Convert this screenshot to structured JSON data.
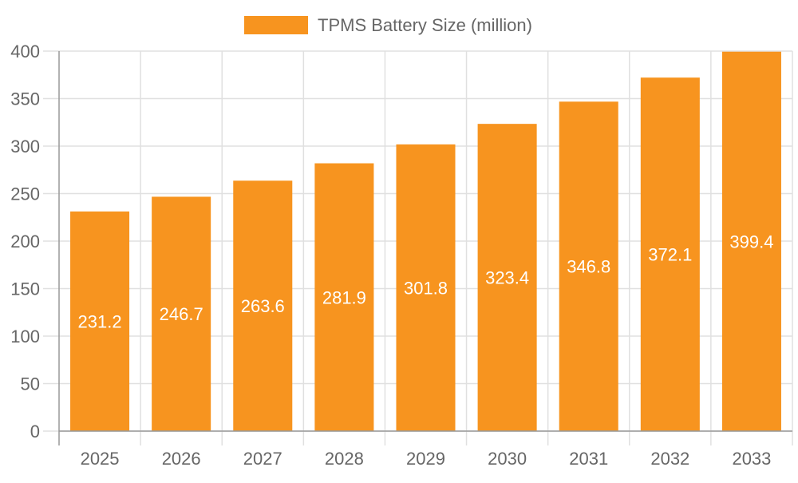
{
  "chart_data": {
    "type": "bar",
    "categories": [
      "2025",
      "2026",
      "2027",
      "2028",
      "2029",
      "2030",
      "2031",
      "2032",
      "2033"
    ],
    "series": [
      {
        "name": "TPMS Battery Size (million)",
        "values": [
          231.2,
          246.7,
          263.6,
          281.9,
          301.8,
          323.4,
          346.8,
          372.1,
          399.4
        ]
      }
    ],
    "data_labels": [
      "231.2",
      "246.7",
      "263.6",
      "281.9",
      "301.8",
      "323.4",
      "346.8",
      "372.1",
      "399.4"
    ],
    "yticks": [
      "0",
      "50",
      "100",
      "150",
      "200",
      "250",
      "300",
      "350",
      "400"
    ],
    "ylim": [
      0,
      400
    ],
    "grid": true,
    "legend": "top",
    "colors": {
      "bar": "#F7941F",
      "grid": "#e0e0e0",
      "axis": "#999999",
      "text": "#666666",
      "label": "#ffffff"
    }
  }
}
